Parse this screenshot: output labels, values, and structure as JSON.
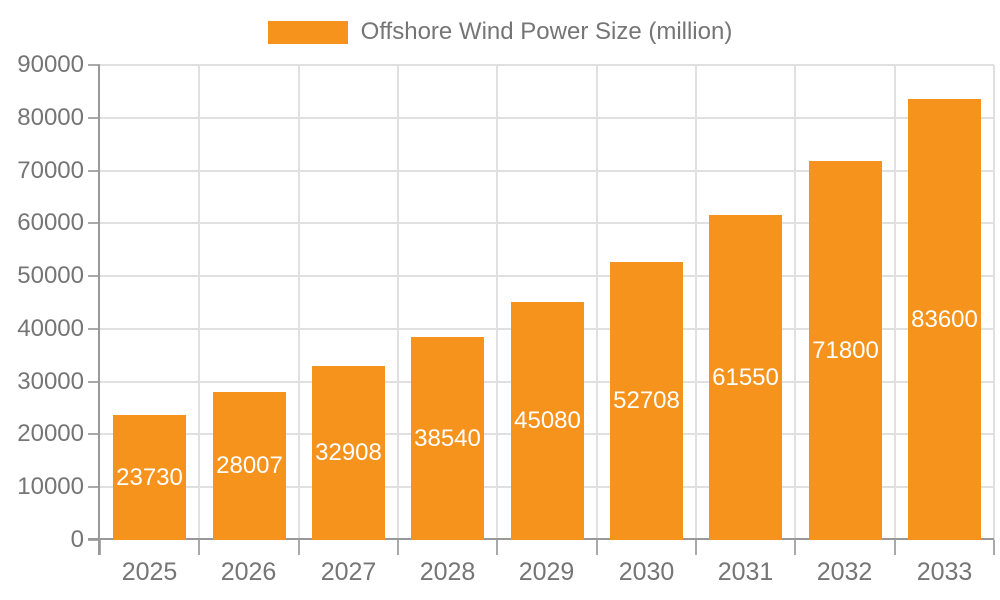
{
  "chart_data": {
    "type": "bar",
    "legend_label": "Offshore Wind Power Size (million)",
    "legend_position": "top-center",
    "categories": [
      "2025",
      "2026",
      "2027",
      "2028",
      "2029",
      "2030",
      "2031",
      "2032",
      "2033"
    ],
    "series": [
      {
        "name": "Offshore Wind Power Size (million)",
        "values": [
          23730,
          28007,
          32908,
          38540,
          45080,
          52708,
          61550,
          71800,
          83600
        ]
      }
    ],
    "bar_value_labels": [
      "23730",
      "28007",
      "32908",
      "38540",
      "45080",
      "52708",
      "61550",
      "71800",
      "83600"
    ],
    "ylim": [
      0,
      90000
    ],
    "yticks": [
      0,
      10000,
      20000,
      30000,
      40000,
      50000,
      60000,
      70000,
      80000,
      90000
    ],
    "ytick_labels": [
      "0",
      "10000",
      "20000",
      "30000",
      "40000",
      "50000",
      "60000",
      "70000",
      "80000",
      "90000"
    ],
    "grid": true,
    "colors": {
      "bar": "#F6931D",
      "bar_label": "#FFFFFF",
      "axis": "#999999",
      "tick": "#A9A9A9",
      "grid": "#E0E0E0",
      "text": "#757575",
      "background": "#FFFFFF"
    }
  }
}
